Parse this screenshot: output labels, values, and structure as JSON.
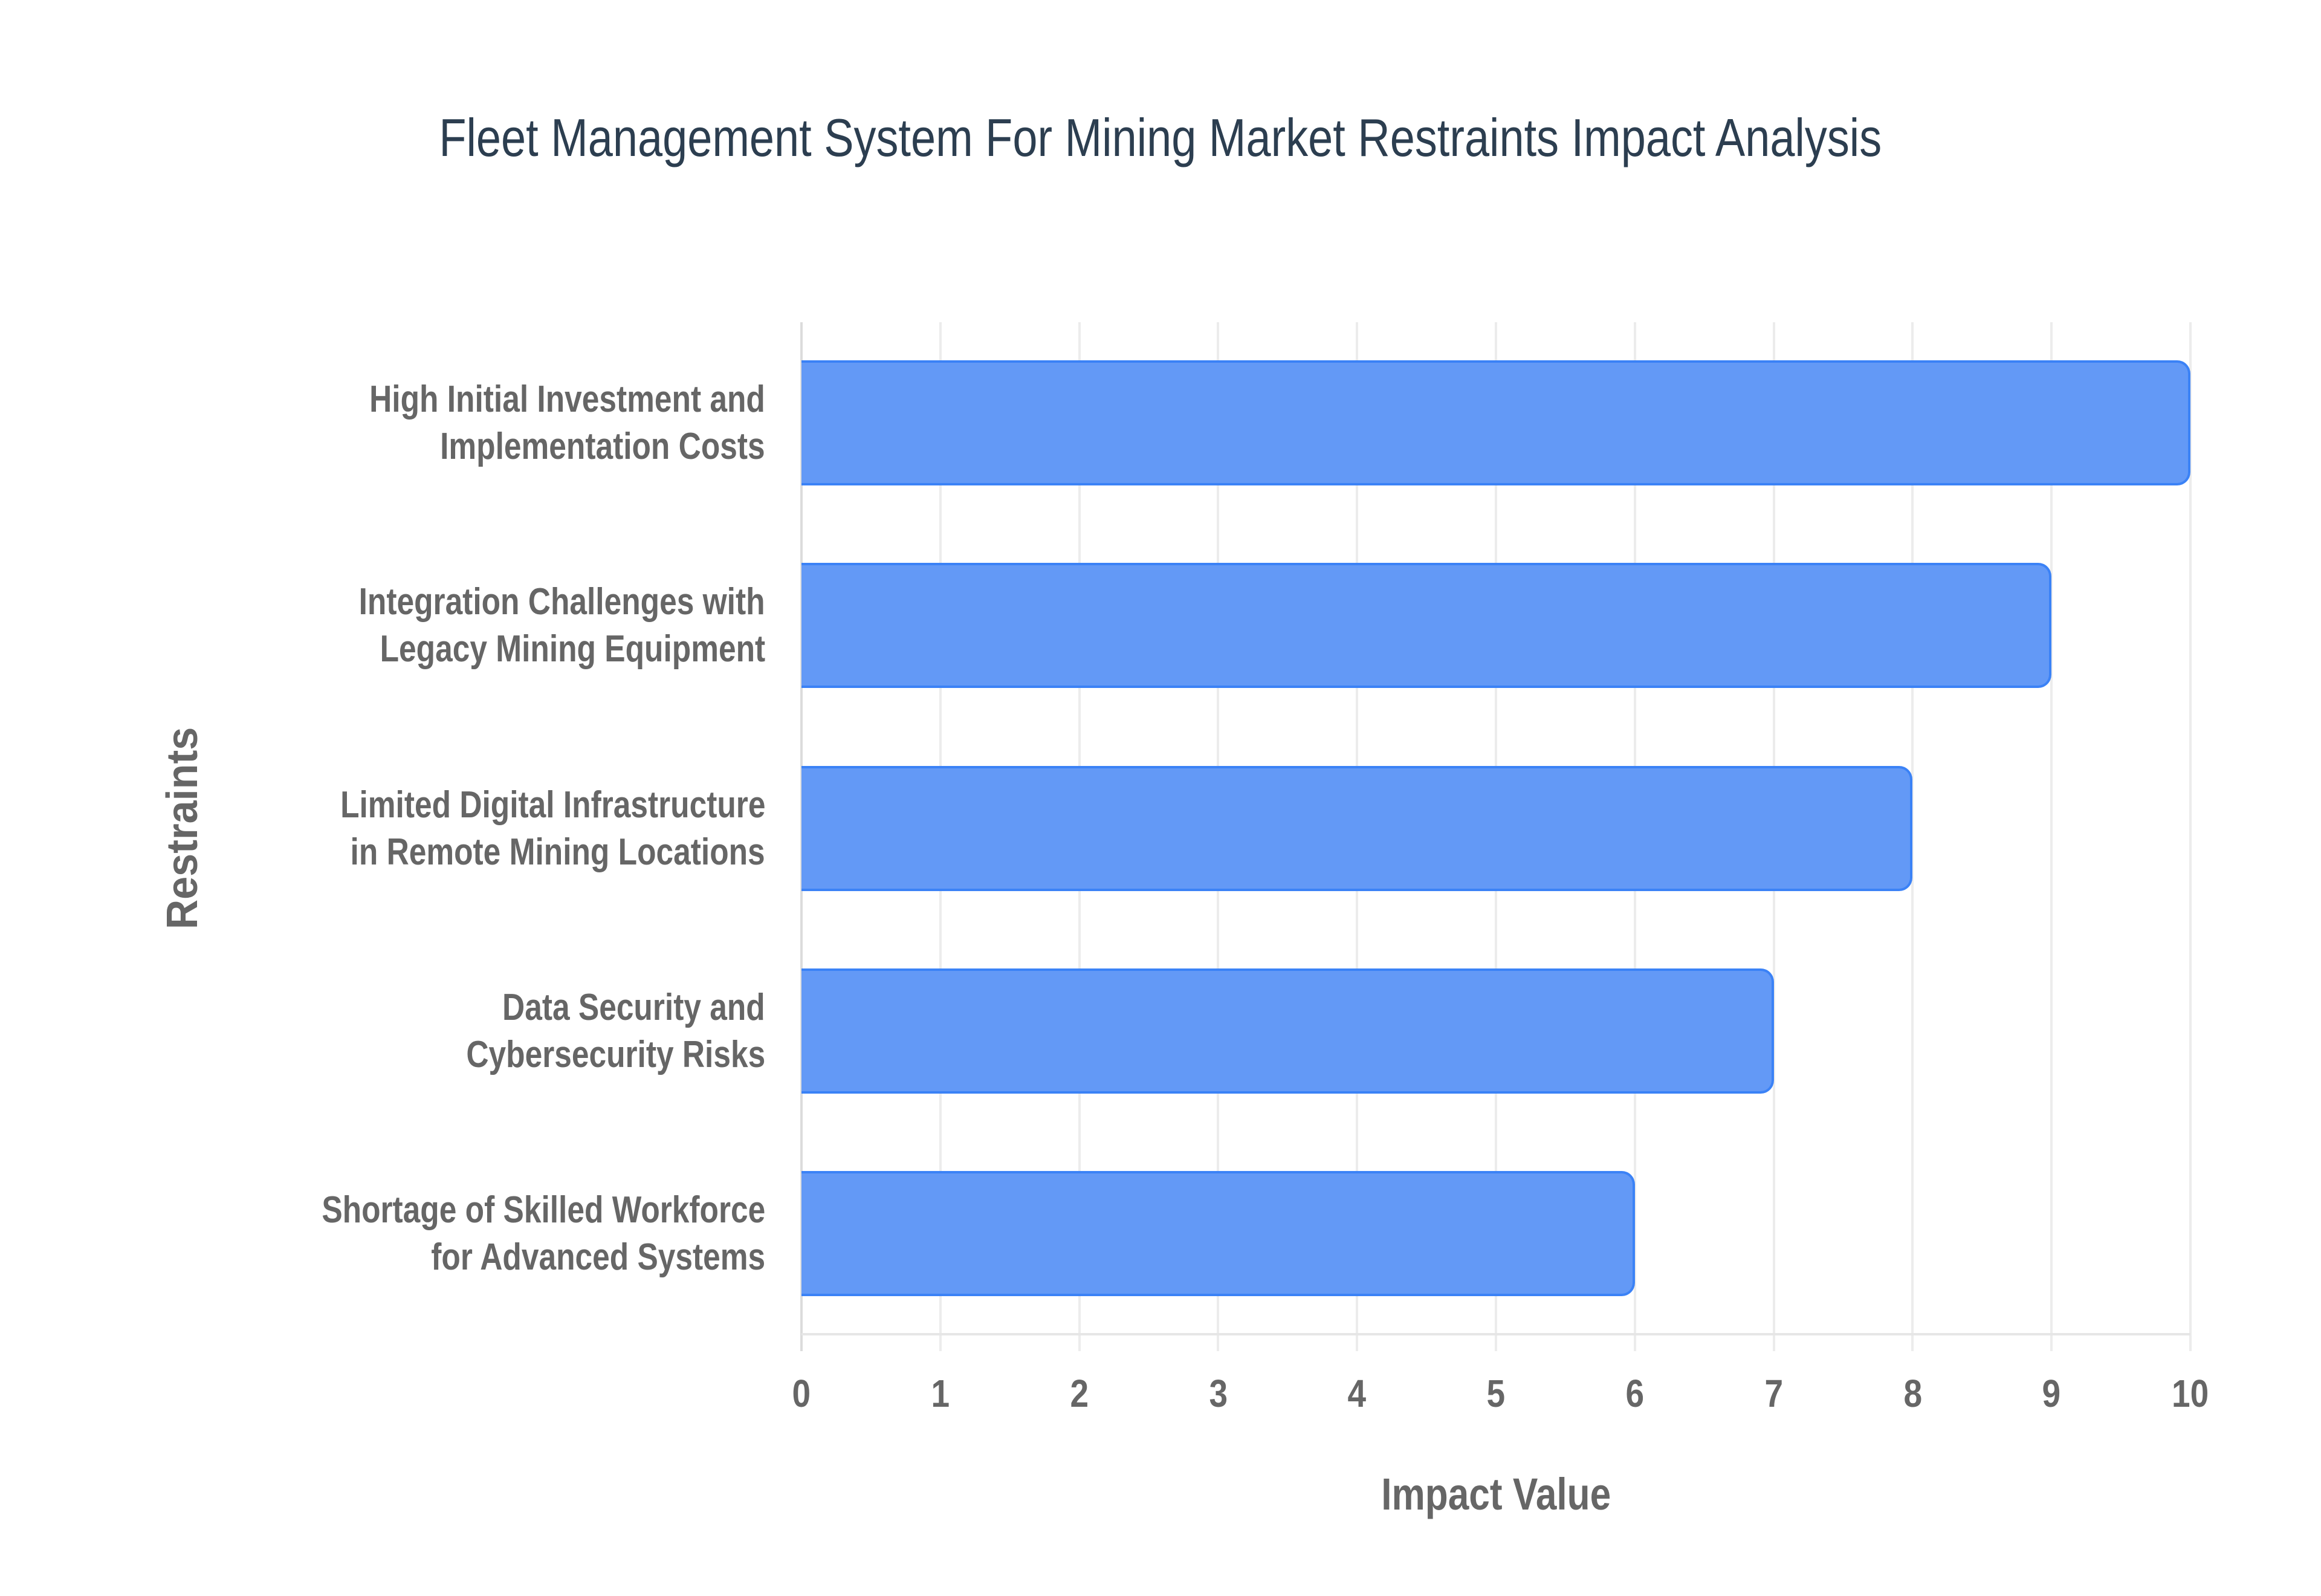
{
  "title": "Fleet Management System For Mining Market Restraints Impact Analysis",
  "colors": {
    "bar_fill": "#6399f6",
    "bar_border": "#3b82f6",
    "title": "#2c3e50",
    "axis_text": "#666666",
    "grid": "#ececec"
  },
  "axes": {
    "x_title": "Impact Value",
    "y_title": "Restraints",
    "x_ticks": [
      "0",
      "1",
      "2",
      "3",
      "4",
      "5",
      "6",
      "7",
      "8",
      "9",
      "10"
    ]
  },
  "bars": [
    {
      "label_line1": "High Initial Investment and",
      "label_line2": "Implementation Costs",
      "value": 10
    },
    {
      "label_line1": "Integration Challenges with",
      "label_line2": "Legacy Mining Equipment",
      "value": 9
    },
    {
      "label_line1": "Limited Digital Infrastructure",
      "label_line2": "in Remote Mining Locations",
      "value": 8
    },
    {
      "label_line1": "Data Security and",
      "label_line2": "Cybersecurity Risks",
      "value": 7
    },
    {
      "label_line1": "Shortage of Skilled Workforce",
      "label_line2": "for Advanced Systems",
      "value": 6
    }
  ],
  "chart_data": {
    "type": "bar",
    "orientation": "horizontal",
    "title": "Fleet Management System For Mining Market Restraints Impact Analysis",
    "categories": [
      "High Initial Investment and Implementation Costs",
      "Integration Challenges with Legacy Mining Equipment",
      "Limited Digital Infrastructure in Remote Mining Locations",
      "Data Security and Cybersecurity Risks",
      "Shortage of Skilled Workforce for Advanced Systems"
    ],
    "values": [
      10,
      9,
      8,
      7,
      6
    ],
    "xlabel": "Impact Value",
    "ylabel": "Restraints",
    "xlim": [
      0,
      10
    ],
    "x_ticks": [
      0,
      1,
      2,
      3,
      4,
      5,
      6,
      7,
      8,
      9,
      10
    ],
    "grid": true,
    "legend": "none"
  }
}
